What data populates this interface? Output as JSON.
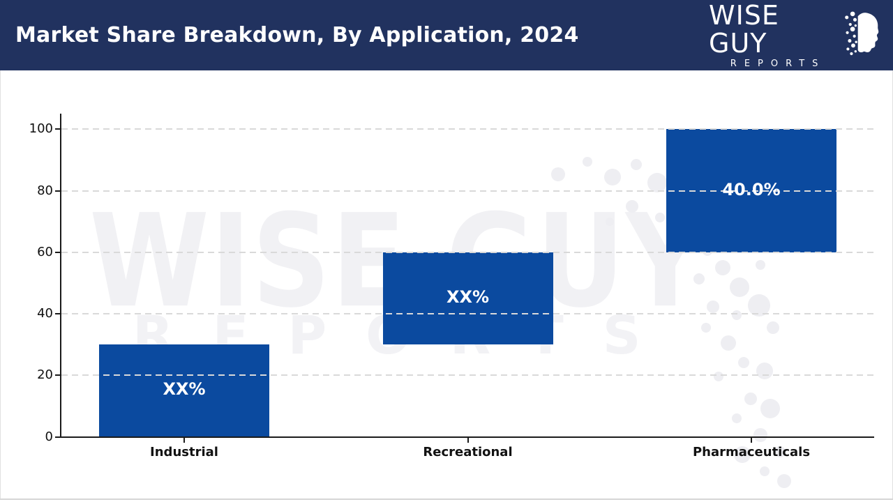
{
  "header": {
    "title": "Market Share Breakdown, By Application, 2024",
    "logo": {
      "line1": "WISE GUY",
      "line2": "REPORTS"
    }
  },
  "watermark": {
    "line1": "WISE GUY",
    "line2": "REPORTS"
  },
  "chart_data": {
    "type": "bar",
    "variant": "floating-waterfall-bars",
    "title": "Market Share Breakdown, By Application, 2024",
    "categories": [
      "Industrial",
      "Recreational",
      "Pharmaceuticals"
    ],
    "segments": [
      {
        "category": "Industrial",
        "from": 0,
        "to": 30,
        "label": "XX%"
      },
      {
        "category": "Recreational",
        "from": 30,
        "to": 60,
        "label": "XX%"
      },
      {
        "category": "Pharmaceuticals",
        "from": 60,
        "to": 100,
        "label": "40.0%"
      }
    ],
    "yticks": [
      0,
      20,
      40,
      60,
      80,
      100
    ],
    "ylim": [
      0,
      105
    ],
    "xlabel": "",
    "ylabel": "",
    "grid": "horizontal dashed, drawn above bars",
    "legend": "none",
    "bar_color": "#0b4a9f"
  },
  "colors": {
    "header_bg": "#21325f",
    "bar": "#0b4a9f",
    "grid": "#d9d9d9",
    "axis": "#1a1a1a",
    "tick_text": "#111111",
    "watermark": "#f1f1f4",
    "bar_label_text": "#ffffff",
    "footer_line": "#d6d6d6"
  }
}
